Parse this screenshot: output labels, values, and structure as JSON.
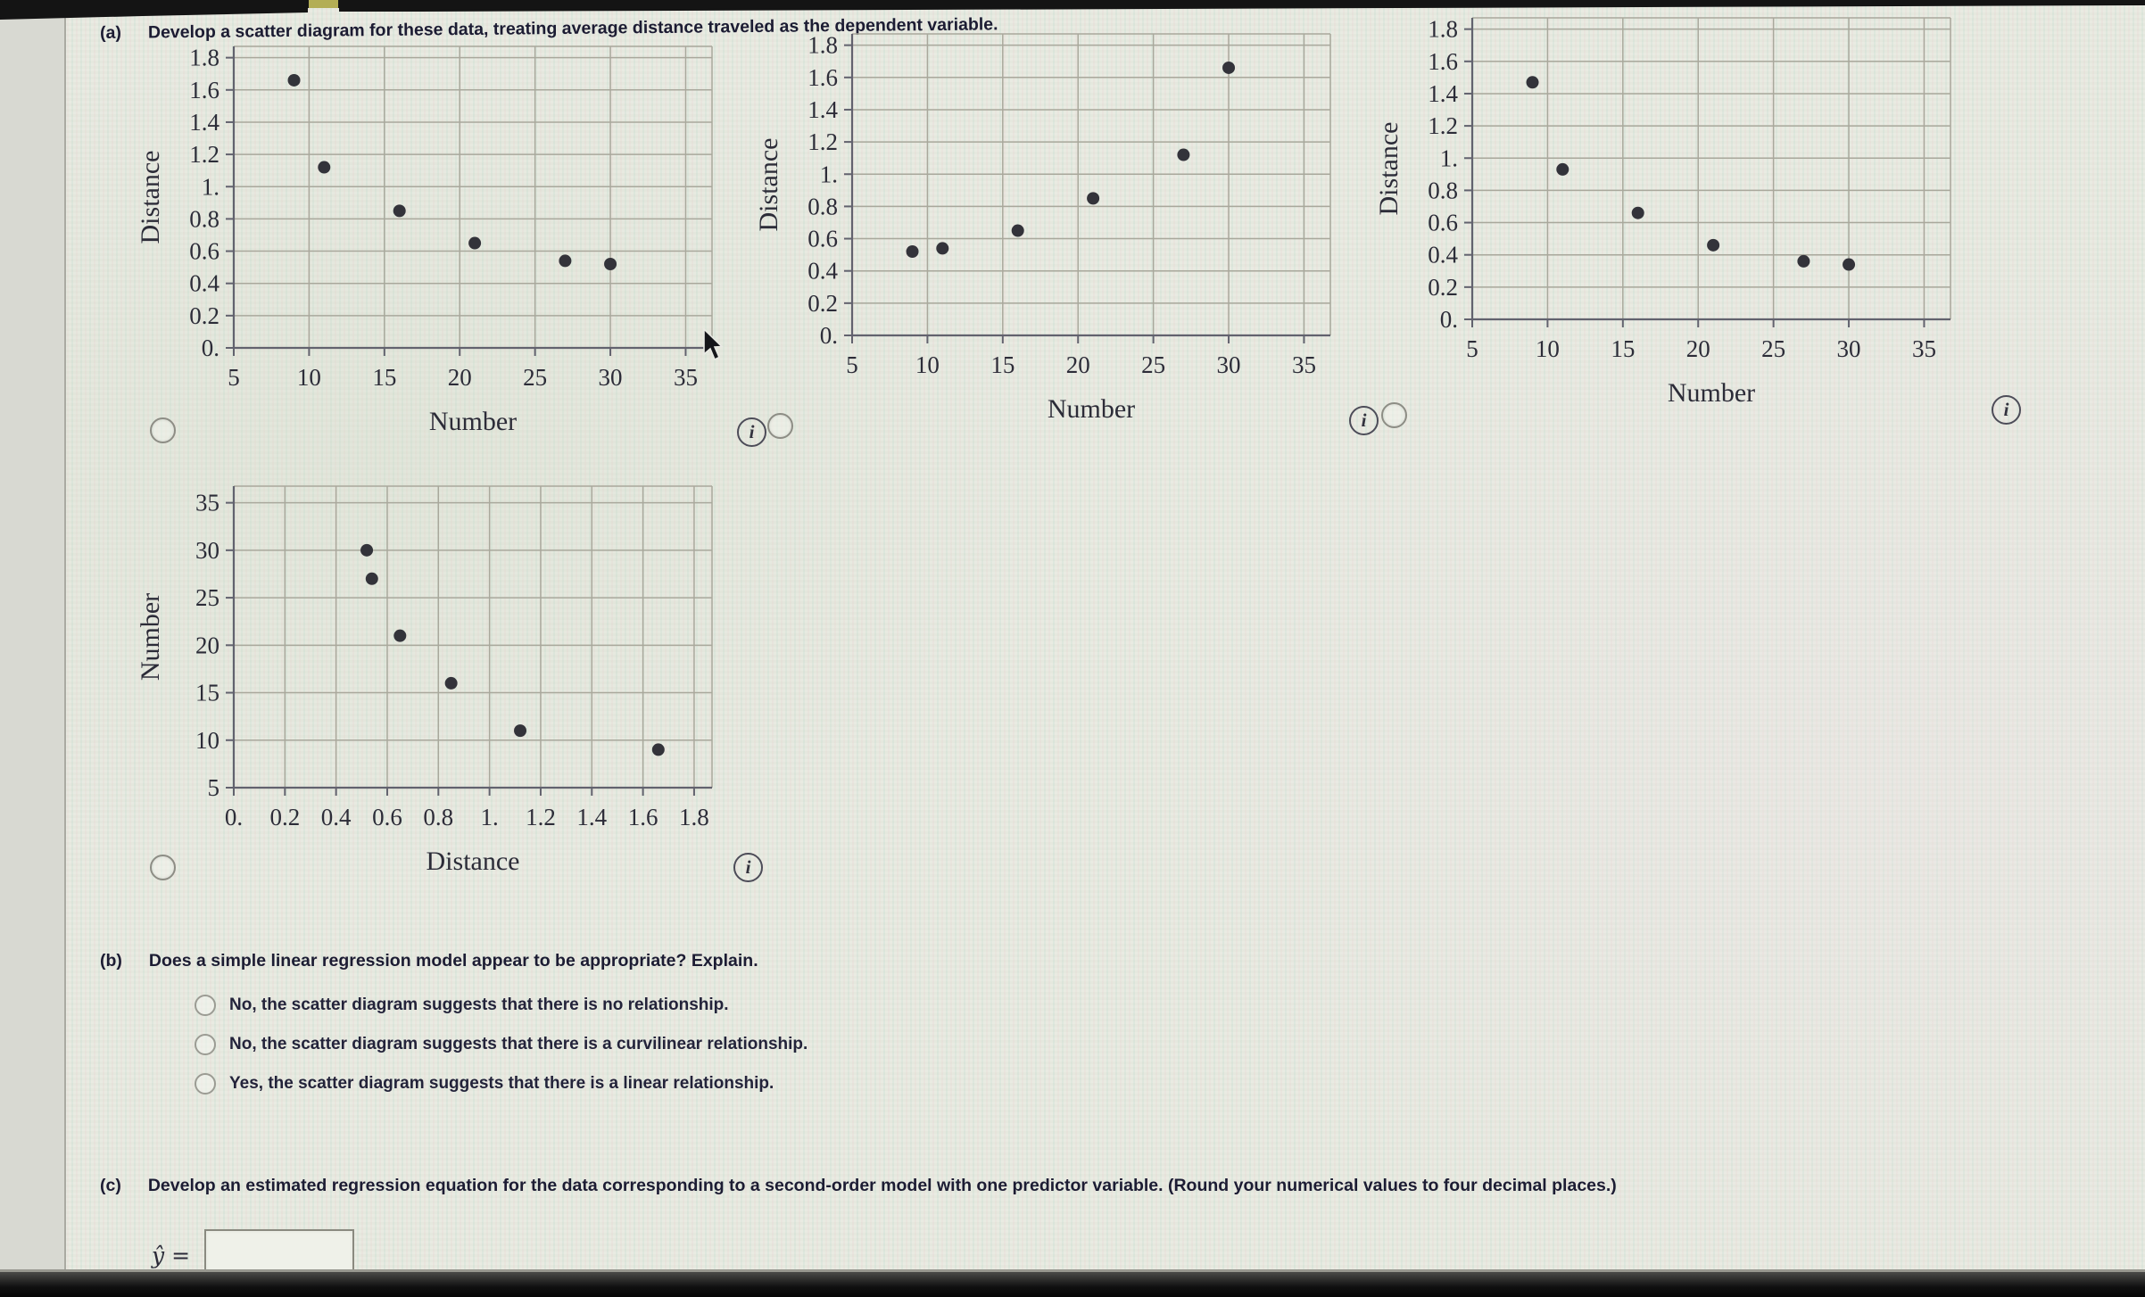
{
  "part_a": {
    "label": "(a)",
    "text": "Develop a scatter diagram for these data, treating average distance traveled as the dependent variable."
  },
  "chart_data": [
    {
      "type": "scatter",
      "option": 1,
      "selected": false,
      "xlabel": "Number",
      "ylabel": "Distance",
      "xlim": [
        5,
        36.75
      ],
      "ylim": [
        0,
        1.87
      ],
      "grid": true,
      "legend": "none",
      "xticks": [
        5,
        10,
        15,
        20,
        25,
        30,
        35
      ],
      "xtick_labels": [
        "5",
        "10",
        "15",
        "20",
        "25",
        "30",
        "35"
      ],
      "yticks": [
        0,
        0.2,
        0.4,
        0.6,
        0.8,
        1,
        1.2,
        1.4,
        1.6,
        1.8
      ],
      "ytick_labels": [
        "0.",
        "0.2",
        "0.4",
        "0.6",
        "0.8",
        "1.",
        "1.2",
        "1.4",
        "1.6",
        "1.8"
      ],
      "points": [
        [
          9,
          1.66
        ],
        [
          11,
          1.12
        ],
        [
          16,
          0.85
        ],
        [
          21,
          0.65
        ],
        [
          27,
          0.54
        ],
        [
          30,
          0.52
        ]
      ]
    },
    {
      "type": "scatter",
      "option": 2,
      "selected": false,
      "xlabel": "Number",
      "ylabel": "Distance",
      "xlim": [
        5,
        36.75
      ],
      "ylim": [
        0,
        1.87
      ],
      "grid": true,
      "legend": "none",
      "xticks": [
        5,
        10,
        15,
        20,
        25,
        30,
        35
      ],
      "xtick_labels": [
        "5",
        "10",
        "15",
        "20",
        "25",
        "30",
        "35"
      ],
      "yticks": [
        0,
        0.2,
        0.4,
        0.6,
        0.8,
        1,
        1.2,
        1.4,
        1.6,
        1.8
      ],
      "ytick_labels": [
        "0.",
        "0.2",
        "0.4",
        "0.6",
        "0.8",
        "1.",
        "1.2",
        "1.4",
        "1.6",
        "1.8"
      ],
      "points": [
        [
          9,
          0.52
        ],
        [
          11,
          0.54
        ],
        [
          16,
          0.65
        ],
        [
          21,
          0.85
        ],
        [
          27,
          1.12
        ],
        [
          30,
          1.66
        ]
      ]
    },
    {
      "type": "scatter",
      "option": 3,
      "selected": false,
      "xlabel": "Number",
      "ylabel": "Distance",
      "xlim": [
        5,
        36.75
      ],
      "ylim": [
        0,
        1.87
      ],
      "grid": true,
      "legend": "none",
      "xticks": [
        5,
        10,
        15,
        20,
        25,
        30,
        35
      ],
      "xtick_labels": [
        "5",
        "10",
        "15",
        "20",
        "25",
        "30",
        "35"
      ],
      "yticks": [
        0,
        0.2,
        0.4,
        0.6,
        0.8,
        1,
        1.2,
        1.4,
        1.6,
        1.8
      ],
      "ytick_labels": [
        "0.",
        "0.2",
        "0.4",
        "0.6",
        "0.8",
        "1.",
        "1.2",
        "1.4",
        "1.6",
        "1.8"
      ],
      "points": [
        [
          9,
          1.47
        ],
        [
          11,
          0.93
        ],
        [
          16,
          0.66
        ],
        [
          21,
          0.46
        ],
        [
          27,
          0.36
        ],
        [
          30,
          0.34
        ]
      ]
    },
    {
      "type": "scatter",
      "option": 4,
      "selected": false,
      "xlabel": "Distance",
      "ylabel": "Number",
      "xlim": [
        0,
        1.87
      ],
      "ylim": [
        5,
        36.75
      ],
      "grid": true,
      "legend": "none",
      "xticks": [
        0,
        0.2,
        0.4,
        0.6,
        0.8,
        1,
        1.2,
        1.4,
        1.6,
        1.8
      ],
      "xtick_labels": [
        "0.",
        "0.2",
        "0.4",
        "0.6",
        "0.8",
        "1.",
        "1.2",
        "1.4",
        "1.6",
        "1.8"
      ],
      "yticks": [
        5,
        10,
        15,
        20,
        25,
        30,
        35
      ],
      "ytick_labels": [
        "5",
        "10",
        "15",
        "20",
        "25",
        "30",
        "35"
      ],
      "points": [
        [
          1.66,
          9
        ],
        [
          1.12,
          11
        ],
        [
          0.85,
          16
        ],
        [
          0.65,
          21
        ],
        [
          0.54,
          27
        ],
        [
          0.52,
          30
        ]
      ]
    }
  ],
  "info_icon_glyph": "i",
  "part_b": {
    "label": "(b)",
    "question": "Does a simple linear regression model appear to be appropriate? Explain.",
    "options": [
      {
        "label": "No, the scatter diagram suggests that there is no relationship.",
        "selected": false
      },
      {
        "label": "No, the scatter diagram suggests that there is a curvilinear relationship.",
        "selected": false
      },
      {
        "label": "Yes, the scatter diagram suggests that there is a linear relationship.",
        "selected": false
      }
    ]
  },
  "part_c": {
    "label": "(c)",
    "question": "Develop an estimated regression equation for the data corresponding to a second-order model with one predictor variable. (Round your numerical values to four decimal places.)",
    "equation_prefix": "ŷ =",
    "input_value": ""
  },
  "colors": {
    "page_bg": "#e8eae1",
    "grid": "#a9a89c",
    "axis": "#62626e",
    "dot": "#33333a",
    "chart_text": "#2c2c38",
    "question_text": "#1c1c33",
    "tab_accent": "#b3ae55",
    "bezel": "#141414"
  }
}
